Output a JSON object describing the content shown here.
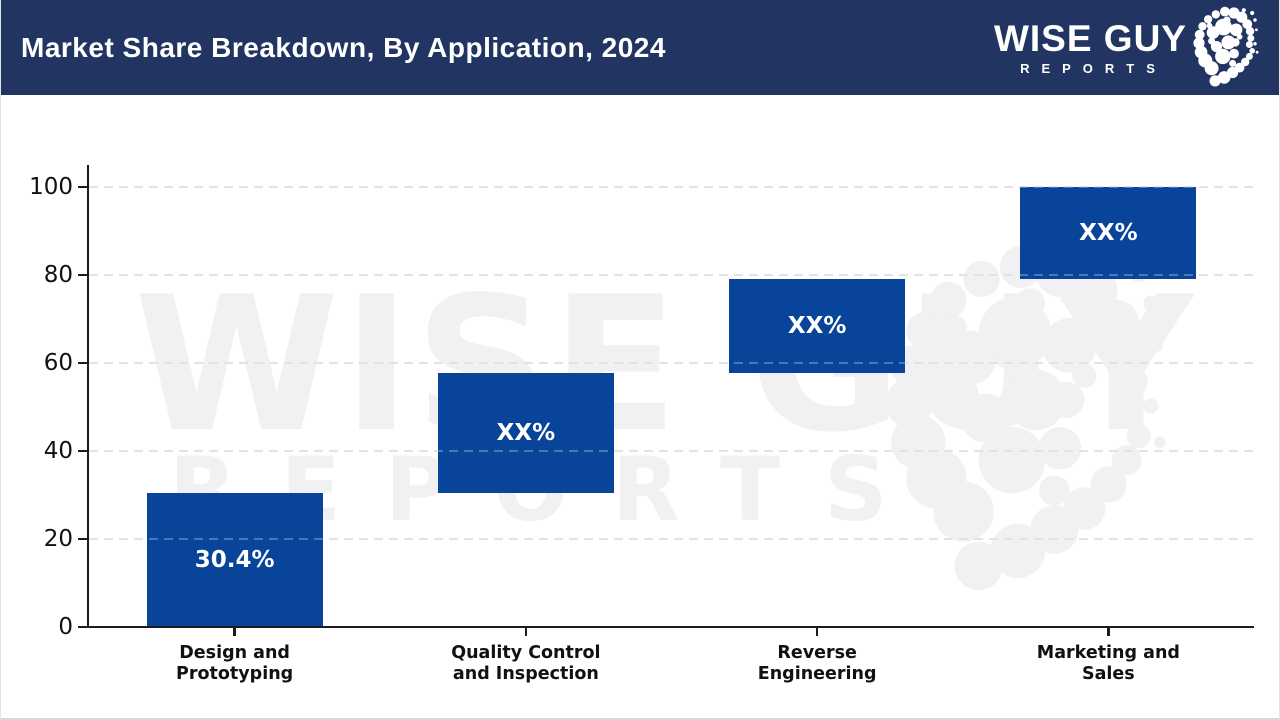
{
  "header": {
    "title": "Market Share Breakdown, By Application, 2024",
    "logo": {
      "line1": "WISE GUY",
      "line2": "REPORTS"
    }
  },
  "watermark": {
    "line1": "WISE GUY",
    "line2": "REPORTS"
  },
  "colors": {
    "header_bg": "#213462",
    "bar": "#08449a",
    "axis": "#1c1c1c",
    "gridline": "#d8d8d8",
    "watermark": "#f1f1f4",
    "bar_label": "#ffffff"
  },
  "chart_data": {
    "type": "bar",
    "subtype": "waterfall",
    "title": "Market Share Breakdown, By Application, 2024",
    "categories": [
      "Design and\nPrototyping",
      "Quality Control\nand Inspection",
      "Reverse\nEngineering",
      "Marketing and\nSales"
    ],
    "segments": [
      {
        "category": "Design and Prototyping",
        "label": "30.4%",
        "start": 0,
        "end": 30.4
      },
      {
        "category": "Quality Control and Inspection",
        "label": "XX%",
        "start": 30.4,
        "end": 57.7
      },
      {
        "category": "Reverse Engineering",
        "label": "XX%",
        "start": 57.7,
        "end": 79.1
      },
      {
        "category": "Marketing and Sales",
        "label": "XX%",
        "start": 79.1,
        "end": 100
      }
    ],
    "xlabel": "",
    "ylabel": "",
    "yticks": [
      0,
      20,
      40,
      60,
      80,
      100
    ],
    "ylim": [
      0,
      105
    ],
    "grid": true,
    "grid_style": "dashed",
    "legend": false,
    "bar_color": "#08449a",
    "value_label_color": "#ffffff"
  }
}
